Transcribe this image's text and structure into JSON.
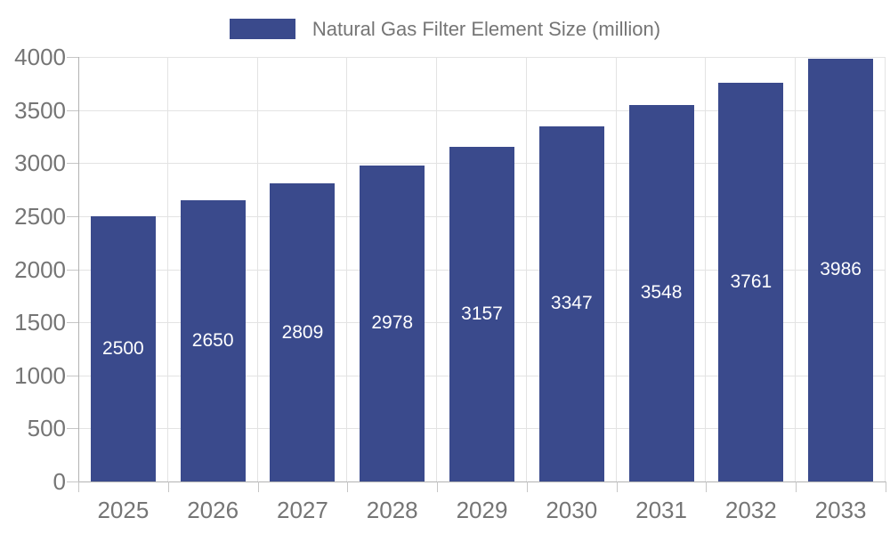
{
  "legend": {
    "series_label": "Natural Gas Filter Element Size (million)"
  },
  "chart_data": {
    "type": "bar",
    "title": "Natural Gas Filter Element Size (million)",
    "categories": [
      "2025",
      "2026",
      "2027",
      "2028",
      "2029",
      "2030",
      "2031",
      "2032",
      "2033"
    ],
    "series": [
      {
        "name": "Natural Gas Filter Element Size (million)",
        "values": [
          2500,
          2650,
          2809,
          2978,
          3157,
          3347,
          3548,
          3761,
          3986
        ]
      }
    ],
    "value_labels_shown": true,
    "xlabel": "",
    "ylabel": "",
    "ylim": [
      0,
      4000
    ],
    "yticks": [
      0,
      500,
      1000,
      1500,
      2000,
      2500,
      3000,
      3500,
      4000
    ],
    "grid": true,
    "legend_position": "top"
  },
  "colors": {
    "bar": "#3A4A8C",
    "value_label": "#FFFFFF",
    "axis_text": "#757575",
    "legend_text": "#757575",
    "gridline": "#E3E3E3",
    "axis_line": "#B3B3B3",
    "tick": "#C6C6C6",
    "background": "#FFFFFF"
  }
}
